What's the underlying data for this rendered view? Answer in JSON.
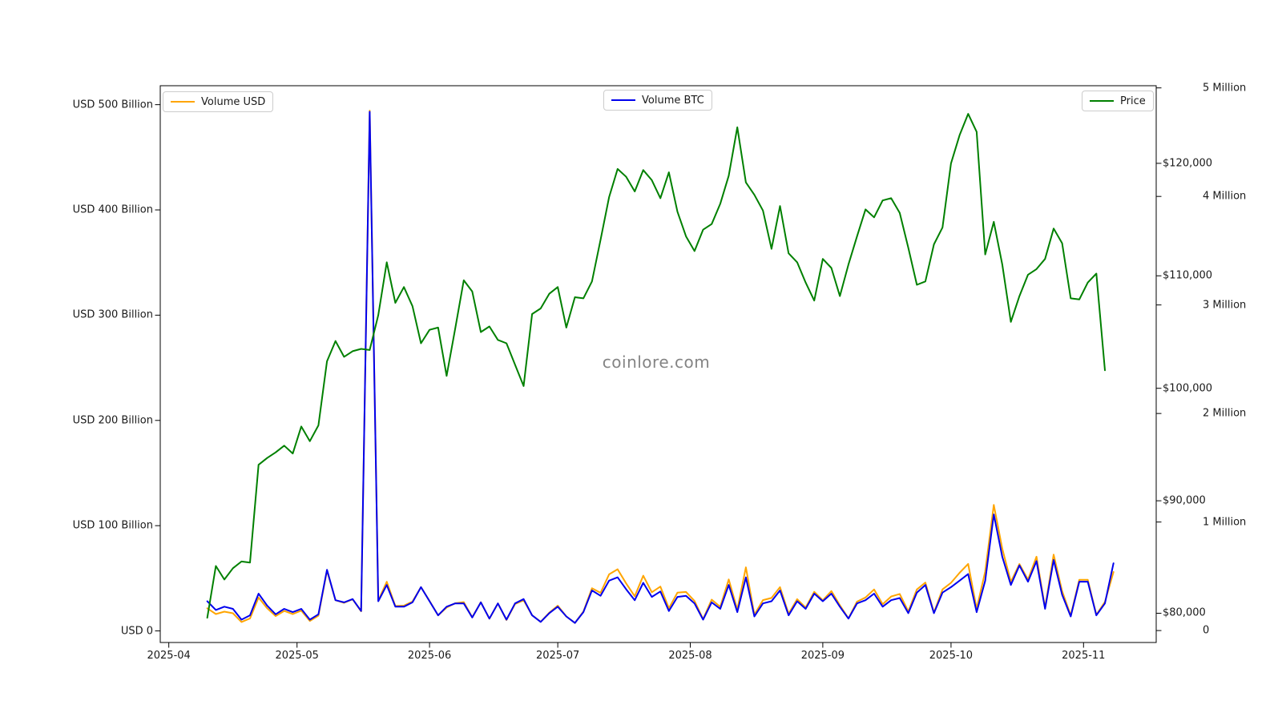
{
  "watermark": "coinlore.com",
  "legend": [
    {
      "label": "Volume USD",
      "color": "#FFA500"
    },
    {
      "label": "Volume BTC",
      "color": "#0000EE"
    },
    {
      "label": "Price",
      "color": "#008000"
    }
  ],
  "axes": {
    "x": {
      "ticks": [
        {
          "date": "2025-04-01",
          "label": "2025-04"
        },
        {
          "date": "2025-05-01",
          "label": "2025-05"
        },
        {
          "date": "2025-06-01",
          "label": "2025-06"
        },
        {
          "date": "2025-07-01",
          "label": "2025-07"
        },
        {
          "date": "2025-08-01",
          "label": "2025-08"
        },
        {
          "date": "2025-09-01",
          "label": "2025-09"
        },
        {
          "date": "2025-10-01",
          "label": "2025-10"
        },
        {
          "date": "2025-11-01",
          "label": "2025-11"
        }
      ]
    },
    "left_usd": {
      "unit": "USD Billion",
      "ticks": [
        {
          "value": 0,
          "label": "USD 0"
        },
        {
          "value": 100,
          "label": "USD 100 Billion"
        },
        {
          "value": 200,
          "label": "USD 200 Billion"
        },
        {
          "value": 300,
          "label": "USD 300 Billion"
        },
        {
          "value": 400,
          "label": "USD 400 Billion"
        },
        {
          "value": 500,
          "label": "USD 500 Billion"
        }
      ]
    },
    "right_price": {
      "unit": "USD",
      "ticks": [
        {
          "value": 80,
          "label": "$80,000"
        },
        {
          "value": 90,
          "label": "$90,000"
        },
        {
          "value": 100,
          "label": "$100,000"
        },
        {
          "value": 110,
          "label": "$110,000"
        },
        {
          "value": 120,
          "label": "$120,000"
        }
      ]
    },
    "right_btc": {
      "unit": "BTC",
      "ticks": [
        {
          "value": 0,
          "label": "0"
        },
        {
          "value": 1,
          "label": "1 Million"
        },
        {
          "value": 2,
          "label": "2 Million"
        },
        {
          "value": 3,
          "label": "3 Million"
        },
        {
          "value": 4,
          "label": "4 Million"
        },
        {
          "value": 5,
          "label": "5 Million"
        }
      ]
    }
  },
  "chart_data": {
    "type": "line",
    "grid": false,
    "legend_position": "top",
    "xlim": [
      "2025-03-30",
      "2025-11-18"
    ],
    "ylim": {
      "usd": [
        -11,
        518
      ],
      "btc": [
        -0.11,
        5.02
      ],
      "price": [
        77.4,
        126.9
      ]
    },
    "x_dates": [
      "2025-04-10",
      "2025-04-12",
      "2025-04-14",
      "2025-04-16",
      "2025-04-18",
      "2025-04-20",
      "2025-04-22",
      "2025-04-24",
      "2025-04-26",
      "2025-04-28",
      "2025-04-30",
      "2025-05-02",
      "2025-05-04",
      "2025-05-06",
      "2025-05-08",
      "2025-05-10",
      "2025-05-12",
      "2025-05-14",
      "2025-05-16",
      "2025-05-18",
      "2025-05-20",
      "2025-05-22",
      "2025-05-24",
      "2025-05-26",
      "2025-05-28",
      "2025-05-30",
      "2025-06-01",
      "2025-06-03",
      "2025-06-05",
      "2025-06-07",
      "2025-06-09",
      "2025-06-11",
      "2025-06-13",
      "2025-06-15",
      "2025-06-17",
      "2025-06-19",
      "2025-06-21",
      "2025-06-23",
      "2025-06-25",
      "2025-06-27",
      "2025-06-29",
      "2025-07-01",
      "2025-07-03",
      "2025-07-05",
      "2025-07-07",
      "2025-07-09",
      "2025-07-11",
      "2025-07-13",
      "2025-07-15",
      "2025-07-17",
      "2025-07-19",
      "2025-07-21",
      "2025-07-23",
      "2025-07-25",
      "2025-07-27",
      "2025-07-29",
      "2025-07-31",
      "2025-08-02",
      "2025-08-04",
      "2025-08-06",
      "2025-08-08",
      "2025-08-10",
      "2025-08-12",
      "2025-08-14",
      "2025-08-16",
      "2025-08-18",
      "2025-08-20",
      "2025-08-22",
      "2025-08-24",
      "2025-08-26",
      "2025-08-28",
      "2025-08-30",
      "2025-09-01",
      "2025-09-03",
      "2025-09-05",
      "2025-09-07",
      "2025-09-09",
      "2025-09-11",
      "2025-09-13",
      "2025-09-15",
      "2025-09-17",
      "2025-09-19",
      "2025-09-21",
      "2025-09-23",
      "2025-09-25",
      "2025-09-27",
      "2025-09-29",
      "2025-10-01",
      "2025-10-03",
      "2025-10-05",
      "2025-10-07",
      "2025-10-09",
      "2025-10-11",
      "2025-10-13",
      "2025-10-15",
      "2025-10-17",
      "2025-10-19",
      "2025-10-21",
      "2025-10-23",
      "2025-10-25",
      "2025-10-27",
      "2025-10-29",
      "2025-10-31",
      "2025-11-02",
      "2025-11-04",
      "2025-11-06",
      "2025-11-08"
    ],
    "series": [
      {
        "name": "Volume USD",
        "axis": "usd",
        "unit": "billion USD",
        "color": "#FFA500",
        "values": [
          21.5,
          16.0,
          18.3,
          16.8,
          8.5,
          11.8,
          31.7,
          21.6,
          14.1,
          19.0,
          16.0,
          19.3,
          9.5,
          14.5,
          57.3,
          29.2,
          26.7,
          30.0,
          18.6,
          494.3,
          28.8,
          46.7,
          23.7,
          24.0,
          27.9,
          41.6,
          28.4,
          14.8,
          22.2,
          26.3,
          27.4,
          13.0,
          27.3,
          11.6,
          26.1,
          10.4,
          25.5,
          29.1,
          14.9,
          8.6,
          17.3,
          24.0,
          13.7,
          7.6,
          18.4,
          40.5,
          36.2,
          53.8,
          58.6,
          45.1,
          32.9,
          52.5,
          36.7,
          42.1,
          21.5,
          36.4,
          37.0,
          28.4,
          11.2,
          29.7,
          22.9,
          48.9,
          20.2,
          60.4,
          15.4,
          29.3,
          31.3,
          41.6,
          16.3,
          30.2,
          22.2,
          37.2,
          29.1,
          37.9,
          24.4,
          11.9,
          27.8,
          31.8,
          39.4,
          25.3,
          32.7,
          35.1,
          18.5,
          39.4,
          45.9,
          17.5,
          39.5,
          45.7,
          55.2,
          63.7,
          21.1,
          56.5,
          119.7,
          78.1,
          46.6,
          63.5,
          48.7,
          70.5,
          22.1,
          72.5,
          37.7,
          14.7,
          48.6,
          48.6,
          15.3,
          27.6,
          56.0
        ]
      },
      {
        "name": "Volume BTC",
        "axis": "btc",
        "unit": "million BTC",
        "color": "#0000EE",
        "values": [
          0.27,
          0.19,
          0.22,
          0.2,
          0.1,
          0.14,
          0.34,
          0.23,
          0.15,
          0.2,
          0.17,
          0.2,
          0.1,
          0.15,
          0.56,
          0.28,
          0.26,
          0.29,
          0.18,
          4.78,
          0.27,
          0.42,
          0.22,
          0.22,
          0.26,
          0.4,
          0.27,
          0.14,
          0.22,
          0.25,
          0.25,
          0.12,
          0.26,
          0.11,
          0.25,
          0.1,
          0.25,
          0.29,
          0.14,
          0.08,
          0.16,
          0.22,
          0.13,
          0.07,
          0.17,
          0.37,
          0.32,
          0.46,
          0.49,
          0.38,
          0.28,
          0.44,
          0.31,
          0.36,
          0.18,
          0.31,
          0.32,
          0.25,
          0.1,
          0.26,
          0.2,
          0.42,
          0.17,
          0.49,
          0.13,
          0.25,
          0.27,
          0.37,
          0.14,
          0.27,
          0.2,
          0.34,
          0.27,
          0.34,
          0.22,
          0.11,
          0.25,
          0.28,
          0.34,
          0.22,
          0.28,
          0.3,
          0.16,
          0.35,
          0.42,
          0.16,
          0.35,
          0.4,
          0.46,
          0.52,
          0.17,
          0.46,
          1.07,
          0.68,
          0.42,
          0.6,
          0.45,
          0.64,
          0.2,
          0.65,
          0.33,
          0.13,
          0.45,
          0.45,
          0.14,
          0.25,
          0.62
        ]
      },
      {
        "name": "Price",
        "axis": "price",
        "unit": "thousand USD",
        "color": "#008000",
        "values": [
          79.6,
          84.2,
          83.0,
          84.0,
          84.6,
          84.5,
          93.2,
          93.8,
          94.3,
          94.9,
          94.2,
          96.6,
          95.3,
          96.7,
          102.4,
          104.2,
          102.8,
          103.3,
          103.5,
          103.4,
          106.5,
          111.2,
          107.6,
          109.0,
          107.3,
          104.0,
          105.2,
          105.4,
          101.1,
          105.3,
          109.6,
          108.6,
          105.0,
          105.5,
          104.3,
          104.0,
          102.1,
          100.2,
          106.6,
          107.1,
          108.4,
          109.0,
          105.4,
          108.1,
          108.0,
          109.5,
          113.2,
          117.0,
          119.5,
          118.8,
          117.5,
          119.4,
          118.5,
          116.9,
          119.2,
          115.7,
          113.5,
          112.2,
          114.1,
          114.6,
          116.4,
          118.9,
          123.2,
          118.3,
          117.2,
          115.8,
          112.4,
          116.2,
          112.0,
          111.2,
          109.4,
          107.8,
          111.5,
          110.7,
          108.2,
          111.0,
          113.5,
          115.9,
          115.2,
          116.7,
          116.9,
          115.6,
          112.5,
          109.2,
          109.5,
          112.8,
          114.3,
          120.0,
          122.5,
          124.4,
          122.8,
          111.9,
          114.8,
          111.0,
          105.9,
          108.2,
          110.1,
          110.6,
          111.5,
          114.2,
          112.9,
          108.0,
          107.9,
          109.4,
          110.2,
          101.6
        ]
      }
    ]
  }
}
